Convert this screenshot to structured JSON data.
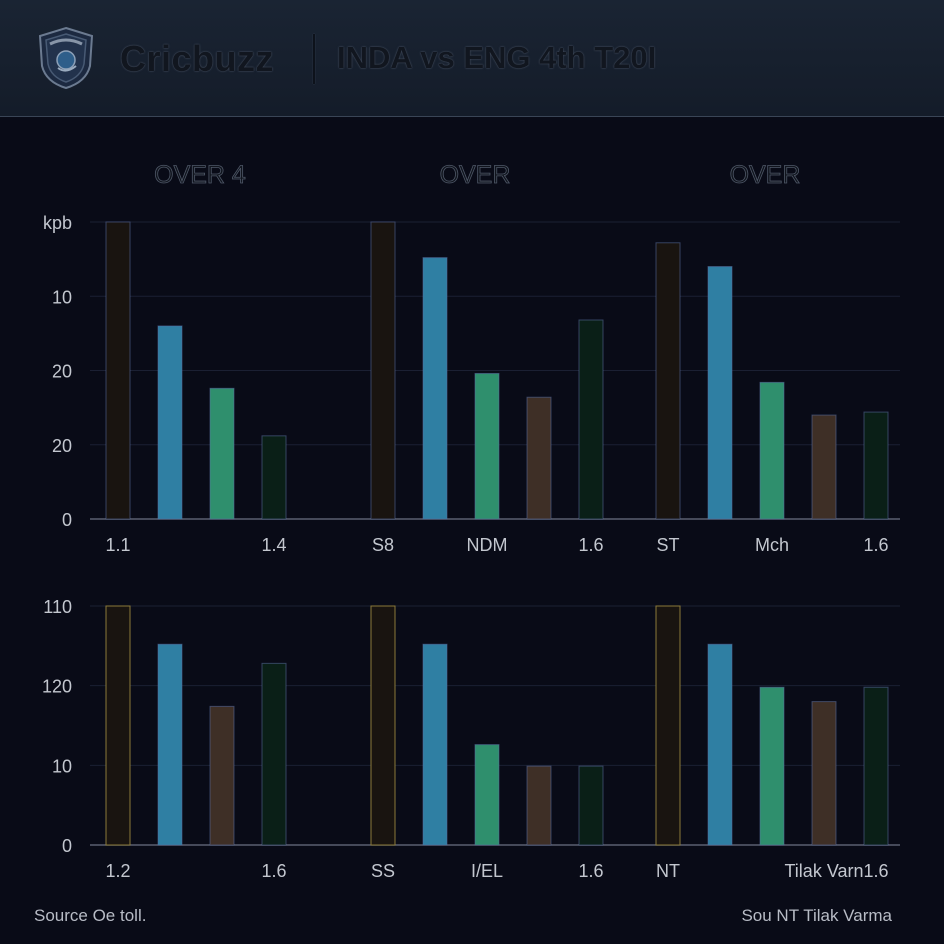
{
  "header": {
    "brand": "Cricbuzz",
    "match_title": "INDA vs ENG 4th T20I"
  },
  "footer": {
    "left": "Source Oe toll.",
    "right": "Sou NT Tilak Varma"
  },
  "colors": {
    "black": "#191410",
    "blue": "#2f7fa3",
    "green": "#2f8f6d",
    "brown": "#3e2f26",
    "darkgreen": "#0a1f17"
  },
  "chart_data": [
    {
      "type": "bar",
      "title": "OVER 4",
      "y_axis_labels": [
        "kpb",
        "10",
        "20",
        "20",
        "0"
      ],
      "x_labels": [
        "1.1",
        "",
        "",
        "1.4"
      ],
      "bar_colors": [
        "black",
        "blue",
        "green",
        "darkgreen"
      ],
      "values": [
        100,
        65,
        44,
        28
      ],
      "ylim": [
        0,
        100
      ]
    },
    {
      "type": "bar",
      "title": "OVER",
      "x_labels": [
        "S8",
        "",
        "NDM",
        "",
        "1.6"
      ],
      "bar_colors": [
        "black",
        "blue",
        "green",
        "brown",
        "darkgreen"
      ],
      "values": [
        100,
        88,
        49,
        41,
        67
      ],
      "ylim": [
        0,
        100
      ]
    },
    {
      "type": "bar",
      "title": "OVER",
      "x_labels": [
        "ST",
        "",
        "Mch",
        "",
        "1.6"
      ],
      "bar_colors": [
        "black",
        "blue",
        "green",
        "brown",
        "darkgreen"
      ],
      "values": [
        93,
        85,
        46,
        35,
        36
      ],
      "ylim": [
        0,
        100
      ]
    },
    {
      "type": "bar",
      "title": "",
      "y_axis_labels": [
        "110",
        "120",
        "10",
        "0"
      ],
      "x_labels": [
        "1.2",
        "",
        "",
        "1.6"
      ],
      "bar_colors": [
        "black",
        "blue",
        "brown",
        "darkgreen"
      ],
      "values": [
        100,
        84,
        58,
        76
      ],
      "ylim": [
        0,
        100
      ]
    },
    {
      "type": "bar",
      "title": "",
      "x_labels": [
        "SS",
        "",
        "I/EL",
        "",
        "1.6"
      ],
      "bar_colors": [
        "black",
        "blue",
        "green",
        "brown",
        "darkgreen"
      ],
      "values": [
        100,
        84,
        42,
        33,
        33
      ],
      "ylim": [
        0,
        100
      ]
    },
    {
      "type": "bar",
      "title": "",
      "x_labels": [
        "NT",
        "",
        "",
        "Tilak Varn",
        "1.6"
      ],
      "bar_colors": [
        "black",
        "blue",
        "green",
        "brown",
        "darkgreen"
      ],
      "values": [
        100,
        84,
        66,
        60,
        66
      ],
      "ylim": [
        0,
        100
      ]
    }
  ]
}
